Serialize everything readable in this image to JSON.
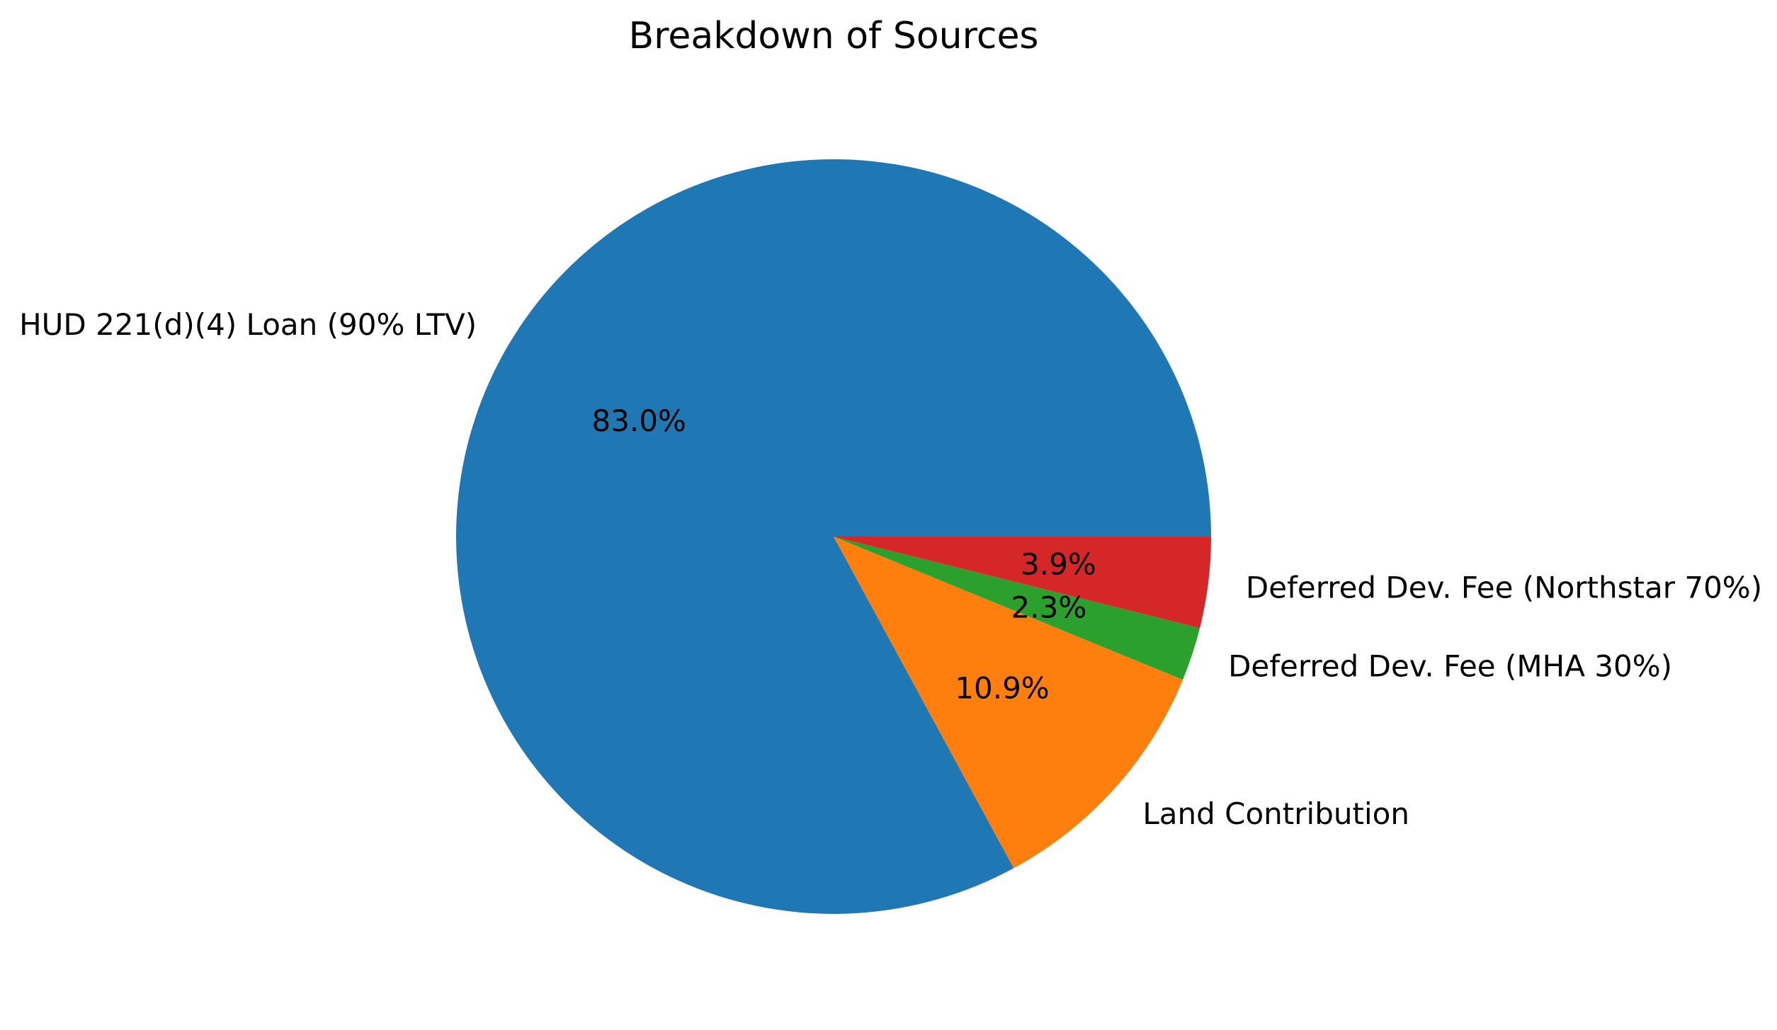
{
  "chart_data": {
    "type": "pie",
    "title": "Breakdown of Sources",
    "categories": [
      "HUD 221(d)(4) Loan (90% LTV)",
      "Land Contribution",
      "Deferred Dev. Fee (MHA 30%)",
      "Deferred Dev. Fee (Northstar 70%)"
    ],
    "values": [
      83.0,
      10.9,
      2.3,
      3.9
    ],
    "slices": [
      {
        "label": "HUD 221(d)(4) Loan (90% LTV)",
        "value": 83.0,
        "pct_label": "83.0%",
        "color": "#1f77b4"
      },
      {
        "label": "Land Contribution",
        "value": 10.9,
        "pct_label": "10.9%",
        "color": "#ff7f0e"
      },
      {
        "label": "Deferred Dev. Fee (MHA 30%)",
        "value": 2.3,
        "pct_label": "2.3%",
        "color": "#2ca02c"
      },
      {
        "label": "Deferred Dev. Fee (Northstar 70%)",
        "value": 3.9,
        "pct_label": "3.9%",
        "color": "#d62728"
      }
    ],
    "start_angle": 0,
    "direction": "counterclockwise",
    "label_distance": 1.1,
    "pct_distance": 0.6,
    "text_color": "#000000",
    "background": "#ffffff",
    "legend": "none"
  }
}
